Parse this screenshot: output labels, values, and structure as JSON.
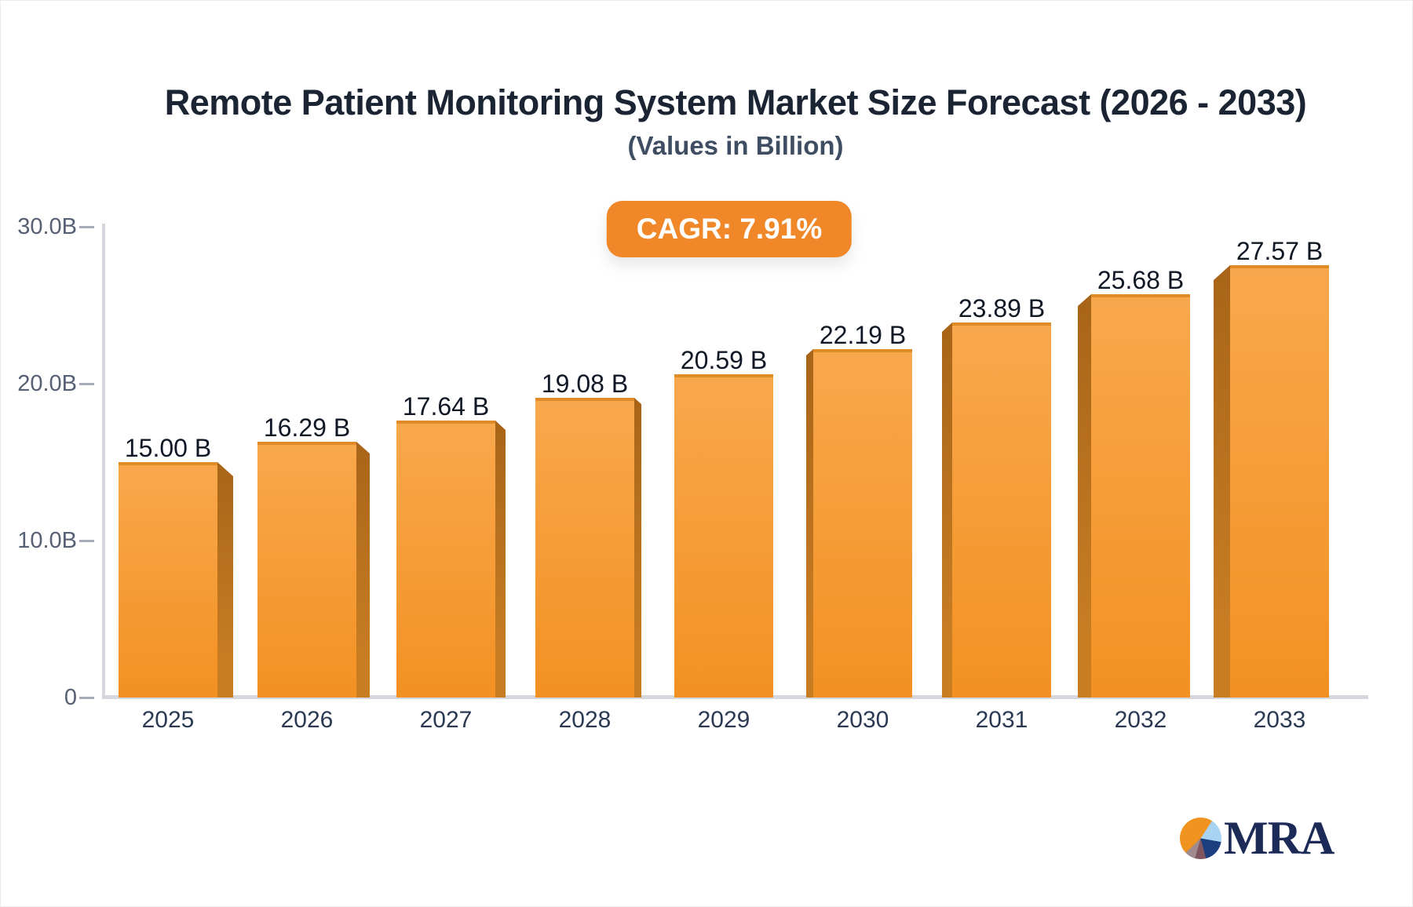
{
  "branding": {
    "logo_text": "MRA",
    "logo_icon": "pie-chart-logo-icon"
  },
  "colors": {
    "title_color": "#1A2433",
    "badge_bg": "#F0882A",
    "axis_line": "#D5D7DC",
    "tick_label": "#566073",
    "year_label": "#2B3A52",
    "value_label": "#101826",
    "bar_front_top": "#F8A84D",
    "bar_front_bottom": "#F39122",
    "bar_top_edge": "#E08B26",
    "bar_side_dark": "#A86418",
    "bar_side_light": "#C87D23",
    "logo_navy": "#1C2A57"
  },
  "chart_data": {
    "type": "bar",
    "title": "Remote Patient Monitoring System Market Size Forecast (2026 - 2033)",
    "subtitle": "(Values in Billion)",
    "annotation": "CAGR: 7.91%",
    "categories": [
      "2025",
      "2026",
      "2027",
      "2028",
      "2029",
      "2030",
      "2031",
      "2032",
      "2033"
    ],
    "values": [
      15.0,
      16.29,
      17.64,
      19.08,
      20.59,
      22.19,
      23.89,
      25.68,
      27.57
    ],
    "value_labels": [
      "15.00 B",
      "16.29 B",
      "17.64 B",
      "19.08 B",
      "20.59 B",
      "22.19 B",
      "23.89 B",
      "25.68 B",
      "27.57 B"
    ],
    "y_axis": {
      "range": [
        0,
        30
      ],
      "ticks": [
        {
          "value": 30,
          "label": "30.0B"
        },
        {
          "value": 20,
          "label": "20.0B"
        },
        {
          "value": 10,
          "label": "10.0B"
        },
        {
          "value": 0,
          "label": "0"
        }
      ]
    },
    "grid": false,
    "legend": false,
    "bar_style": "3d-perspective-orange"
  }
}
